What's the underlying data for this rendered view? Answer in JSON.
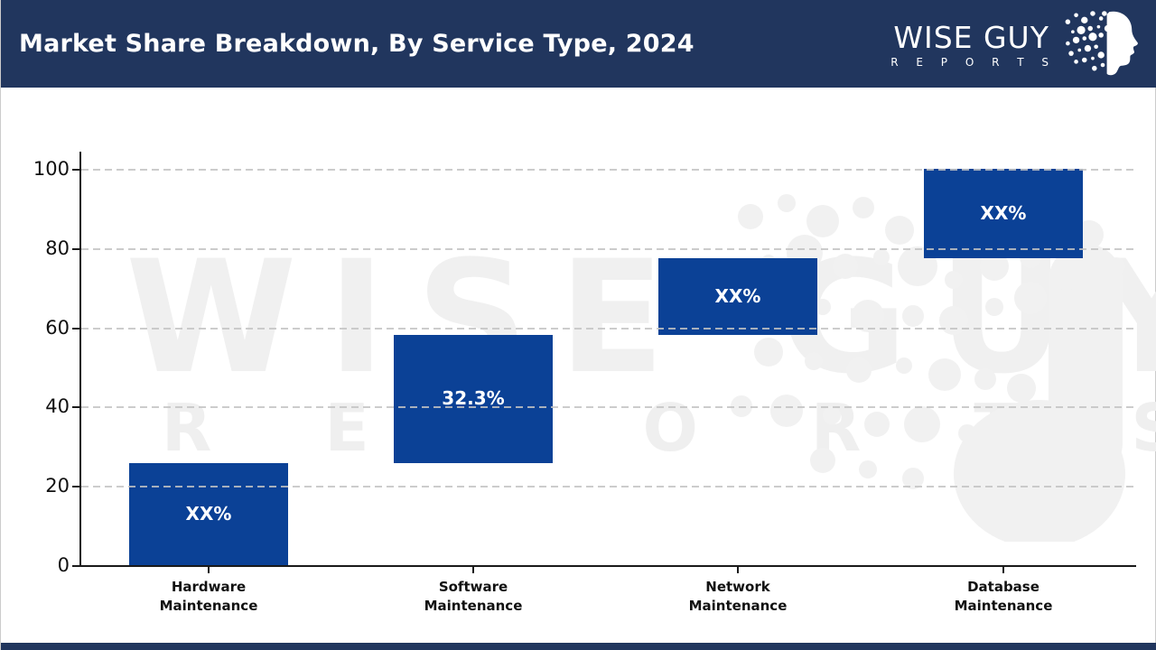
{
  "header": {
    "title": "Market Share Breakdown, By Service Type, 2024",
    "brand_name": "WISE GUY",
    "brand_sub": "R E P O R T S"
  },
  "watermark": {
    "line1": "WISE GUY",
    "line2": "R E P O R T S"
  },
  "colors": {
    "header_bg": "#21365e",
    "footer_bg": "#21365e",
    "bar": "#0b4196",
    "grid": "#c8c8c8",
    "watermark": "#f0f0f0"
  },
  "chart_data": {
    "type": "bar",
    "subtype": "waterfall",
    "title": "Market Share Breakdown, By Service Type, 2024",
    "xlabel": "",
    "ylabel": "",
    "categories": [
      {
        "line1": "Hardware",
        "line2": "Maintenance"
      },
      {
        "line1": "Software",
        "line2": "Maintenance"
      },
      {
        "line1": "Network",
        "line2": "Maintenance"
      },
      {
        "line1": "Database",
        "line2": "Maintenance"
      }
    ],
    "segments": [
      {
        "label": "XX%",
        "start": 0,
        "end": 25.7
      },
      {
        "label": "32.3%",
        "start": 25.7,
        "end": 58.0
      },
      {
        "label": "XX%",
        "start": 58.0,
        "end": 77.5
      },
      {
        "label": "XX%",
        "start": 77.5,
        "end": 100
      }
    ],
    "yticks": [
      0,
      20,
      40,
      60,
      80,
      100
    ],
    "ylim": [
      0,
      104
    ],
    "grid": "dashed-horizontal-over-bars",
    "legend": "none",
    "bar_value_unit": "%"
  }
}
